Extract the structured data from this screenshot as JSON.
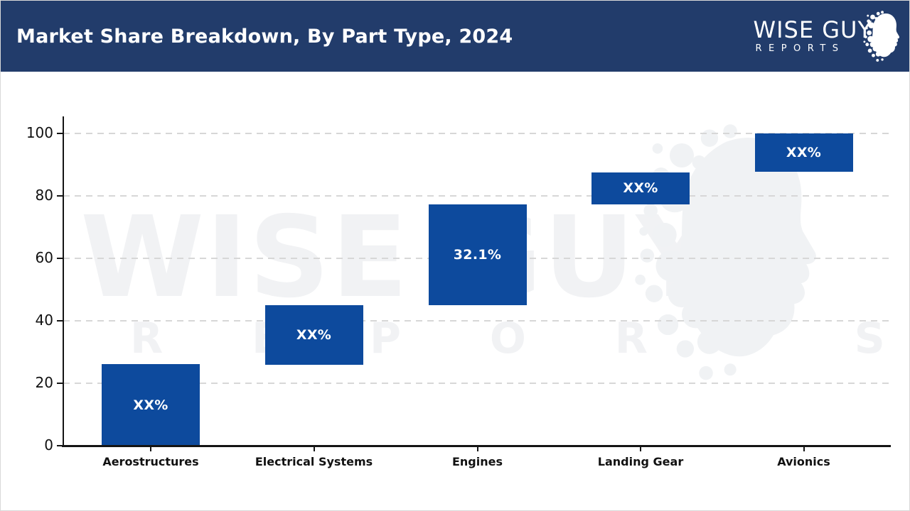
{
  "header": {
    "title": "Market Share Breakdown, By Part Type, 2024",
    "logo": {
      "wordmark": "WISE GUY",
      "subtext": "REPORTS"
    }
  },
  "watermark": {
    "wordmark": "WISE GUY",
    "subtext": "R E P O R T S"
  },
  "theme": {
    "header_bg": "#223c6b",
    "bar_color": "#0d4a9d",
    "grid_color": "#d7d7d7",
    "axis_color": "#141414",
    "tick_label_color": "#111111",
    "bar_label_color": "#ffffff",
    "watermark_color": "#f1f2f4"
  },
  "chart_data": {
    "type": "bar",
    "subtype": "floating-segment-waterfall",
    "title": "Market Share Breakdown, By Part Type, 2024",
    "categories": [
      "Aerostructures",
      "Electrical Systems",
      "Engines",
      "Landing Gear",
      "Avionics"
    ],
    "bars": [
      {
        "category": "Aerostructures",
        "start": 0,
        "end": 26.1,
        "label": "XX%"
      },
      {
        "category": "Electrical Systems",
        "start": 25.9,
        "end": 45.0,
        "label": "XX%"
      },
      {
        "category": "Engines",
        "start": 45.1,
        "end": 77.2,
        "label": "32.1%"
      },
      {
        "category": "Landing Gear",
        "start": 77.3,
        "end": 87.5,
        "label": "XX%"
      },
      {
        "category": "Avionics",
        "start": 87.7,
        "end": 100.0,
        "label": "XX%"
      }
    ],
    "yticks": [
      0,
      20,
      40,
      60,
      80,
      100
    ],
    "ylim": [
      0,
      105
    ],
    "xlabel": "",
    "ylabel": "",
    "grid": "horizontal-dashed",
    "legend": "none"
  }
}
